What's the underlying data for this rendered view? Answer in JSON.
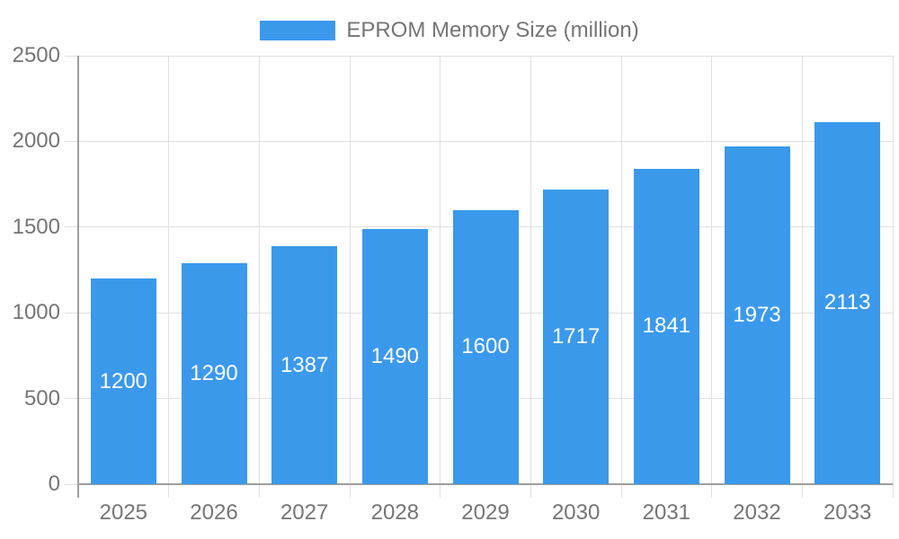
{
  "legend": {
    "label": "EPROM Memory Size (million)"
  },
  "chart_data": {
    "type": "bar",
    "title": "EPROM Memory Size (million)",
    "categories": [
      "2025",
      "2026",
      "2027",
      "2028",
      "2029",
      "2030",
      "2031",
      "2032",
      "2033"
    ],
    "values": [
      1200,
      1290,
      1387,
      1490,
      1600,
      1717,
      1841,
      1973,
      2113
    ],
    "series_name": "EPROM Memory Size (million)",
    "xlabel": "",
    "ylabel": "",
    "ylim": [
      0,
      2500
    ],
    "yticks": [
      0,
      500,
      1000,
      1500,
      2000,
      2500
    ],
    "grid": true,
    "legend_position": "top",
    "data_labels": "inside-center",
    "colors": {
      "bar": "#3b99ec",
      "bar_label": "#ffffff",
      "axis_text": "#757575",
      "gridline": "#e0e0e0",
      "axis_line": "#9e9e9e",
      "background": "#ffffff"
    }
  }
}
